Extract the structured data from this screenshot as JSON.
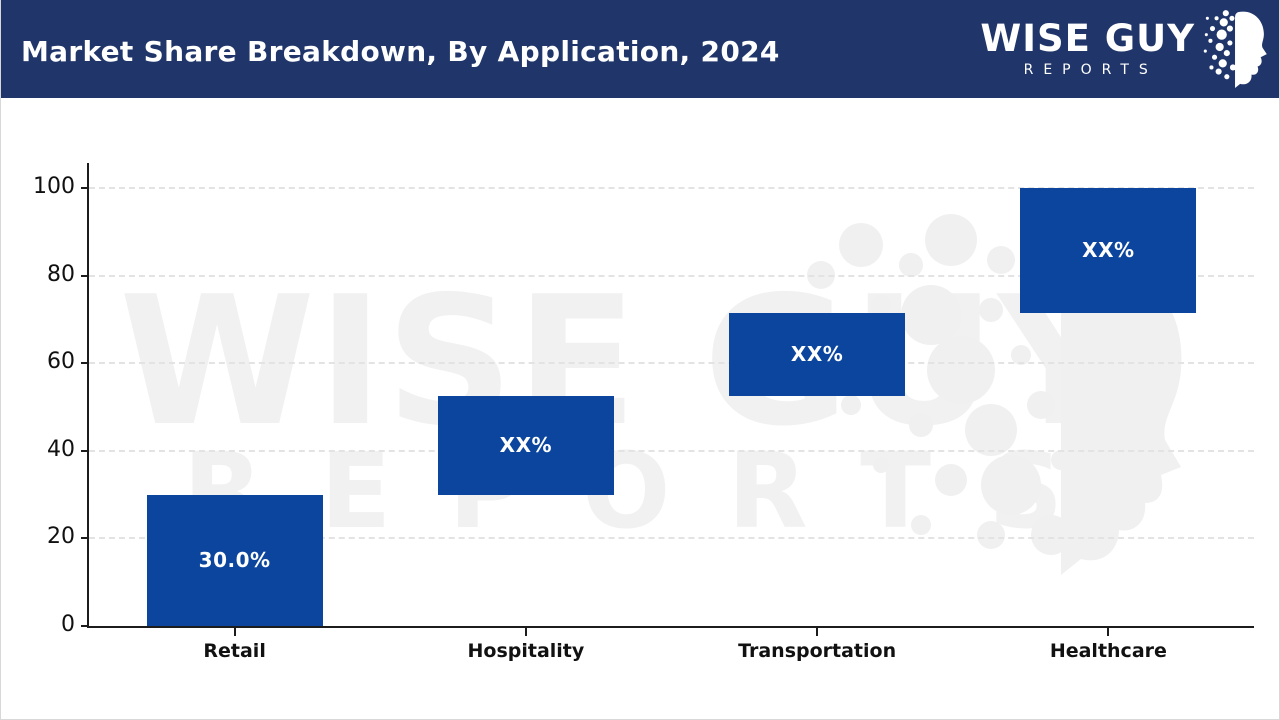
{
  "header": {
    "title": "Market Share Breakdown, By Application, 2024",
    "logo": {
      "line1": "WISE GUY",
      "line2": "REPORTS"
    }
  },
  "watermark": {
    "line1": "WISE GUY",
    "line2": "REPORTS"
  },
  "chart_data": {
    "type": "bar",
    "subtype": "waterfall",
    "title": "Market Share Breakdown, By Application, 2024",
    "categories": [
      "Retail",
      "Hospitality",
      "Transportation",
      "Healthcare"
    ],
    "segments": [
      {
        "category": "Retail",
        "start": 0,
        "end": 30,
        "label": "30.0%"
      },
      {
        "category": "Hospitality",
        "start": 30,
        "end": 52.5,
        "label": "XX%"
      },
      {
        "category": "Transportation",
        "start": 52.5,
        "end": 71.5,
        "label": "XX%"
      },
      {
        "category": "Healthcare",
        "start": 71.5,
        "end": 100,
        "label": "XX%"
      }
    ],
    "yticks": [
      0,
      20,
      40,
      60,
      80,
      100
    ],
    "ylim": [
      0,
      105.5
    ],
    "xlabel": "",
    "ylabel": "",
    "grid": "horizontal-dashed",
    "legend": "none",
    "bar_color": "#0b459e",
    "bar_label_color": "#ffffff"
  },
  "colors": {
    "header_bg": "#20366a",
    "bar": "#0b459e",
    "axis": "#1c1c1c",
    "gridline": "#e3e3e3",
    "watermark": "#f1f1f2",
    "title_text": "#ffffff"
  }
}
